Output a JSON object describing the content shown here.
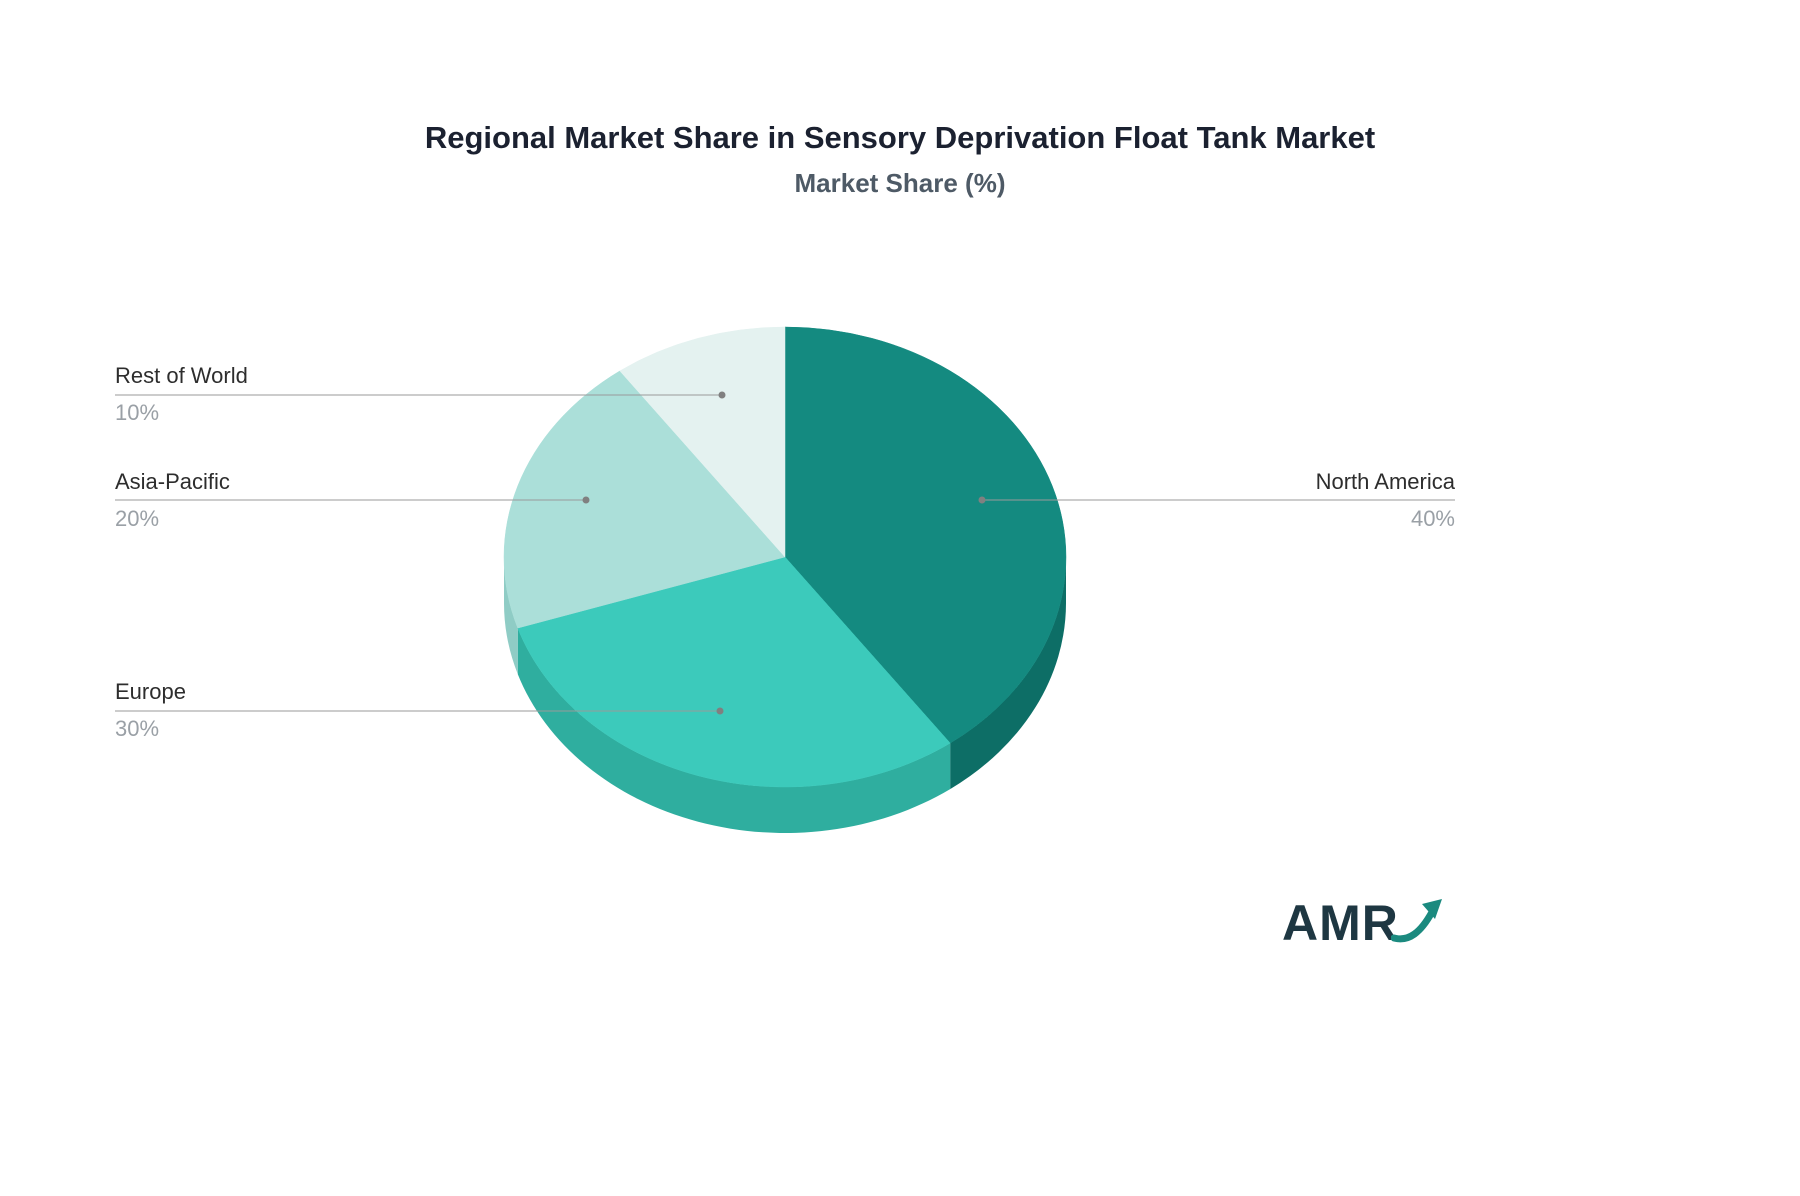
{
  "title": "Regional Market Share in Sensory Deprivation Float Tank Market",
  "subtitle": "Market Share (%)",
  "logo": {
    "text": "AMR",
    "arrow_color": "#1b8a7f",
    "text_color": "#1e3742"
  },
  "chart_data": {
    "type": "pie",
    "style": "3d",
    "title": "Regional Market Share in Sensory Deprivation Float Tank Market",
    "subtitle": "Market Share (%)",
    "unit": "%",
    "start_angle_deg": 0,
    "direction": "clockwise",
    "legend_position": "none",
    "labels_layout": "outside-with-leader-lines",
    "slices": [
      {
        "label": "North America",
        "value": 40,
        "display": "40%",
        "color": "#148a80",
        "side_color": "#0d6e66"
      },
      {
        "label": "Europe",
        "value": 30,
        "display": "30%",
        "color": "#3ccabb",
        "side_color": "#2fae9f"
      },
      {
        "label": "Asia-Pacific",
        "value": 20,
        "display": "20%",
        "color": "#abdfd9",
        "side_color": "#8fccc5"
      },
      {
        "label": "Rest of World",
        "value": 10,
        "display": "10%",
        "color": "#e4f2f0",
        "side_color": "#c6e2de"
      }
    ],
    "leader_line_color": "#9a9a9a",
    "leader_dot_color": "#808080",
    "label_text_color": "#2d2d2d",
    "value_text_color": "#9aa0a6"
  }
}
